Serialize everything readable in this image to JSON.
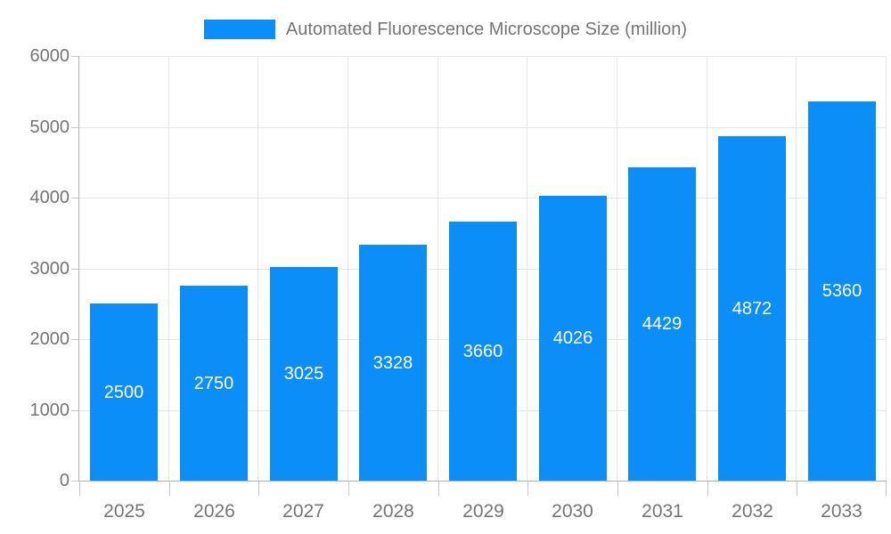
{
  "chart_data": {
    "type": "bar",
    "title": "",
    "legend": {
      "label": "Automated Fluorescence Microscope Size (million)",
      "position": "top"
    },
    "categories": [
      "2025",
      "2026",
      "2027",
      "2028",
      "2029",
      "2030",
      "2031",
      "2032",
      "2033"
    ],
    "series": [
      {
        "name": "Automated Fluorescence Microscope Size (million)",
        "values": [
          2500,
          2750,
          3025,
          3328,
          3660,
          4026,
          4429,
          4872,
          5360
        ]
      }
    ],
    "xlabel": "",
    "ylabel": "",
    "ylim": [
      0,
      6000
    ],
    "y_ticks": [
      0,
      1000,
      2000,
      3000,
      4000,
      5000,
      6000
    ],
    "grid": "horizontal and vertical gridlines on",
    "bar_value_labels": "white, centered inside bars"
  },
  "colors": {
    "bar": "#0C8EF8",
    "bar_label_text": "#ffffff",
    "axis_line": "#b2b2b2",
    "gridline": "#e6e6e6",
    "tick_mark": "#c8c8c8",
    "tick_label_text": "#757575",
    "legend_text": "#757575",
    "background": "#ffffff"
  }
}
